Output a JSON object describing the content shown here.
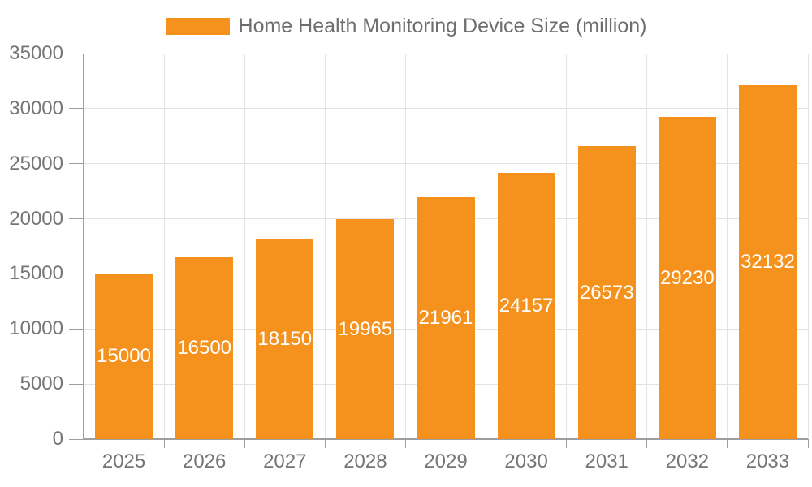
{
  "chart_data": {
    "type": "bar",
    "title": "Home Health Monitoring Device Size (million)",
    "categories": [
      "2025",
      "2026",
      "2027",
      "2028",
      "2029",
      "2030",
      "2031",
      "2032",
      "2033"
    ],
    "values": [
      15000,
      16500,
      18150,
      19965,
      21961,
      24157,
      26573,
      29230,
      32132
    ],
    "xlabel": "",
    "ylabel": "",
    "ylim": [
      0,
      35000
    ],
    "ytick_step": 5000,
    "yticks": [
      0,
      5000,
      10000,
      15000,
      20000,
      25000,
      30000,
      35000
    ],
    "grid": true,
    "legend_position": "top-center",
    "bar_labels_visible": true,
    "colors": {
      "bar": "#F5921E",
      "bar_label": "#FFFFFF",
      "gridline": "#E3E3E3",
      "axis_line": "#9E9E9E",
      "tick_label": "#757575",
      "legend_text": "#6E6E6E",
      "background": "#FFFFFF"
    }
  }
}
